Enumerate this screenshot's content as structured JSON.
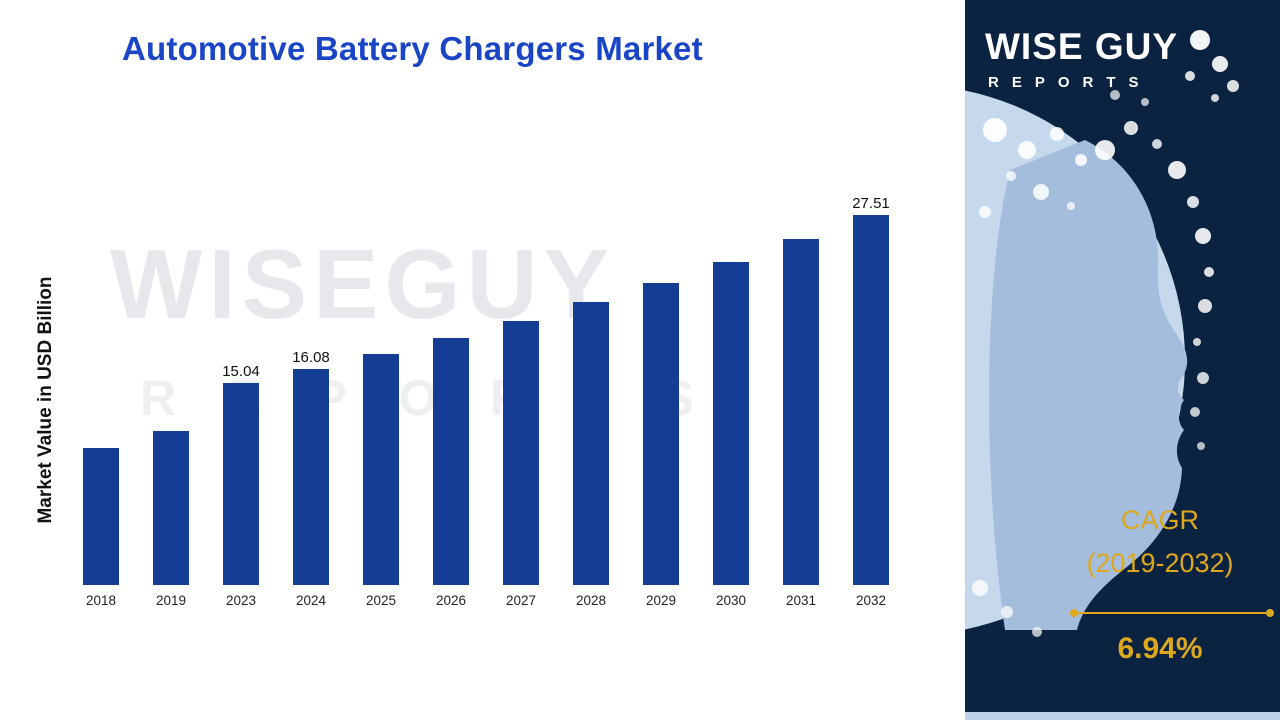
{
  "chart_data": {
    "type": "bar",
    "title": "Automotive Battery Chargers Market",
    "ylabel": "Market Value in USD Billion",
    "xlabel": "",
    "categories": [
      "2018",
      "2019",
      "2023",
      "2024",
      "2025",
      "2026",
      "2027",
      "2028",
      "2029",
      "2030",
      "2031",
      "2032"
    ],
    "values": [
      10.2,
      11.5,
      15.04,
      16.08,
      17.2,
      18.39,
      19.67,
      21.03,
      22.49,
      24.05,
      25.72,
      27.51
    ],
    "value_labels": [
      "",
      "",
      "15.04",
      "16.08",
      "",
      "",
      "",
      "",
      "",
      "",
      "",
      "27.51"
    ],
    "ylim": [
      0,
      30
    ],
    "bar_color": "#133e93",
    "grid": false,
    "legend": "none"
  },
  "brand_panel": {
    "logo_line1": "WISE GUY",
    "logo_line2": "REPORTS",
    "cagr_label": "CAGR",
    "cagr_period": "(2019-2032)",
    "cagr_value": "6.94%",
    "colors": {
      "panel_bg": "#0b2341",
      "accent_gold": "#dca81e",
      "face_light": "#c6d8ec",
      "face_mid": "#a5bddc"
    }
  },
  "watermark": {
    "line1": "WISEGUY",
    "line2": "REPORTS"
  }
}
